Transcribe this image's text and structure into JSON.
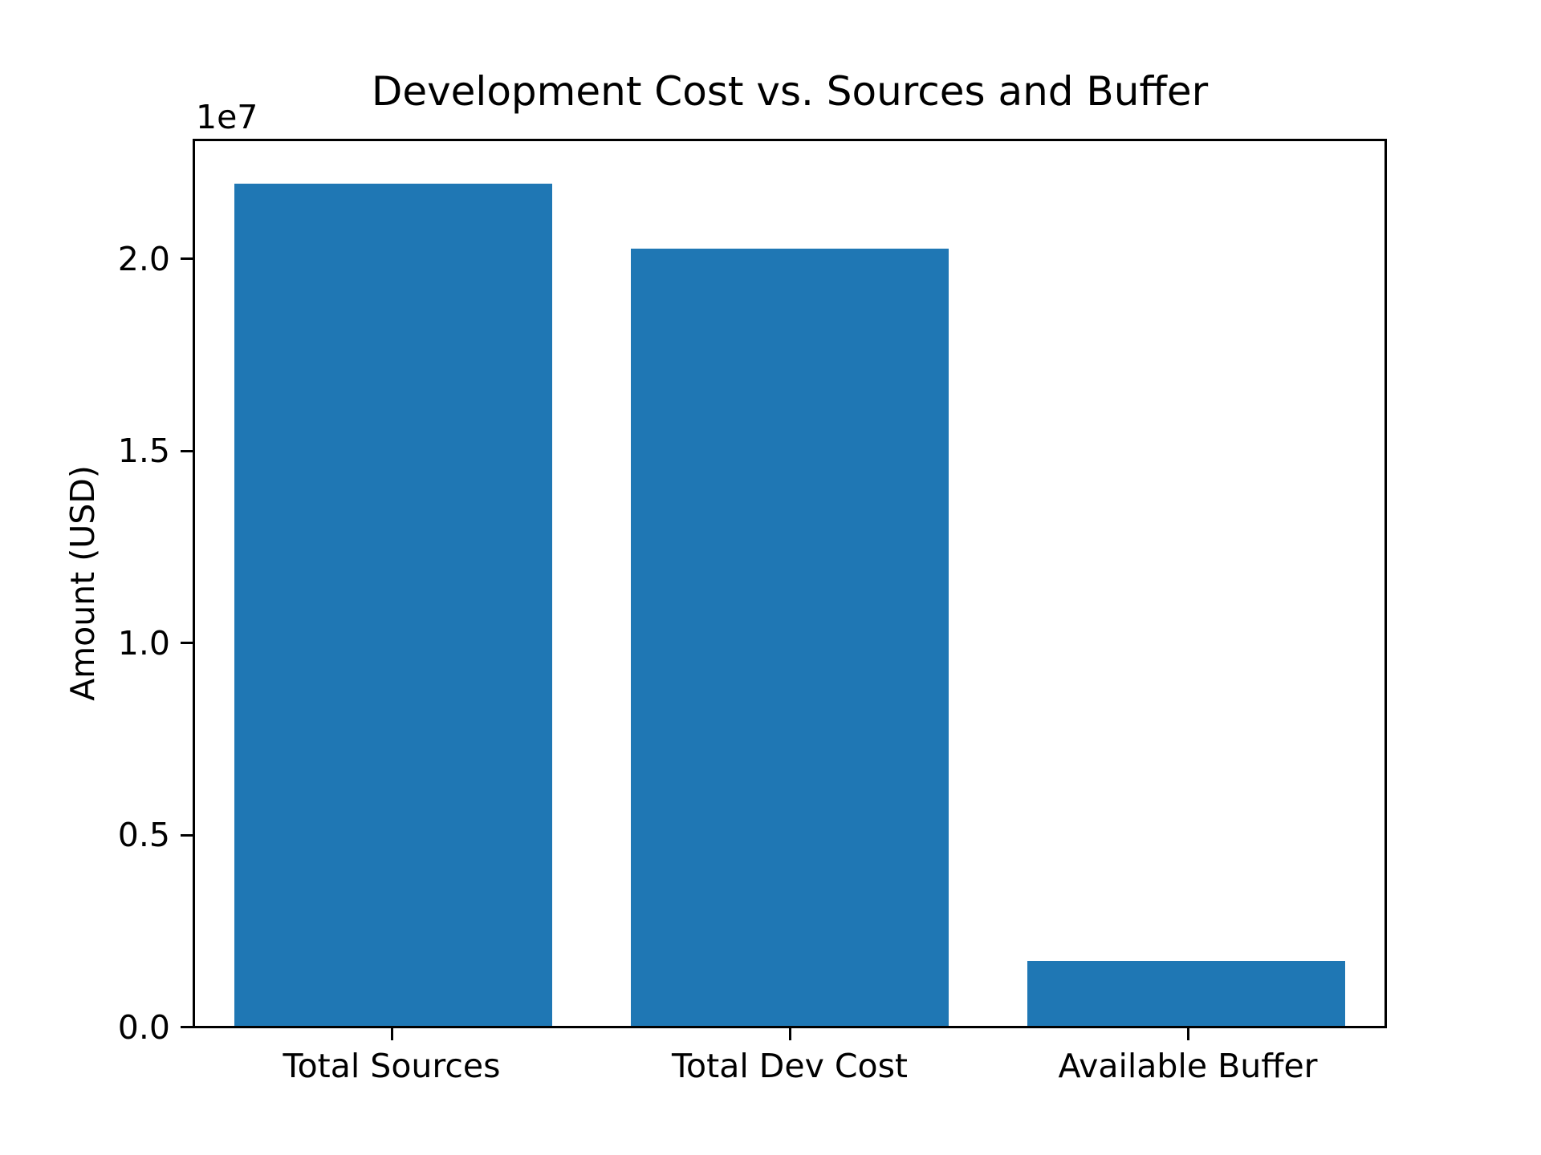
{
  "chart_data": {
    "type": "bar",
    "title": "Development Cost vs. Sources and Buffer",
    "xlabel": "",
    "ylabel": "Amount (USD)",
    "y_offset_label": "1e7",
    "categories": [
      "Total Sources",
      "Total Dev Cost",
      "Available Buffer"
    ],
    "values": [
      22000000,
      20300000,
      1700000
    ],
    "ylim": [
      0,
      23100000
    ],
    "yticks": [
      {
        "value": 0,
        "label": "0.0"
      },
      {
        "value": 5000000,
        "label": "0.5"
      },
      {
        "value": 10000000,
        "label": "1.0"
      },
      {
        "value": 15000000,
        "label": "1.5"
      },
      {
        "value": 20000000,
        "label": "2.0"
      }
    ],
    "bar_color": "#1f77b4",
    "axis_color": "#000000",
    "background_color": "#ffffff",
    "grid": false,
    "legend": "none",
    "bar_width_fraction": 0.8
  }
}
